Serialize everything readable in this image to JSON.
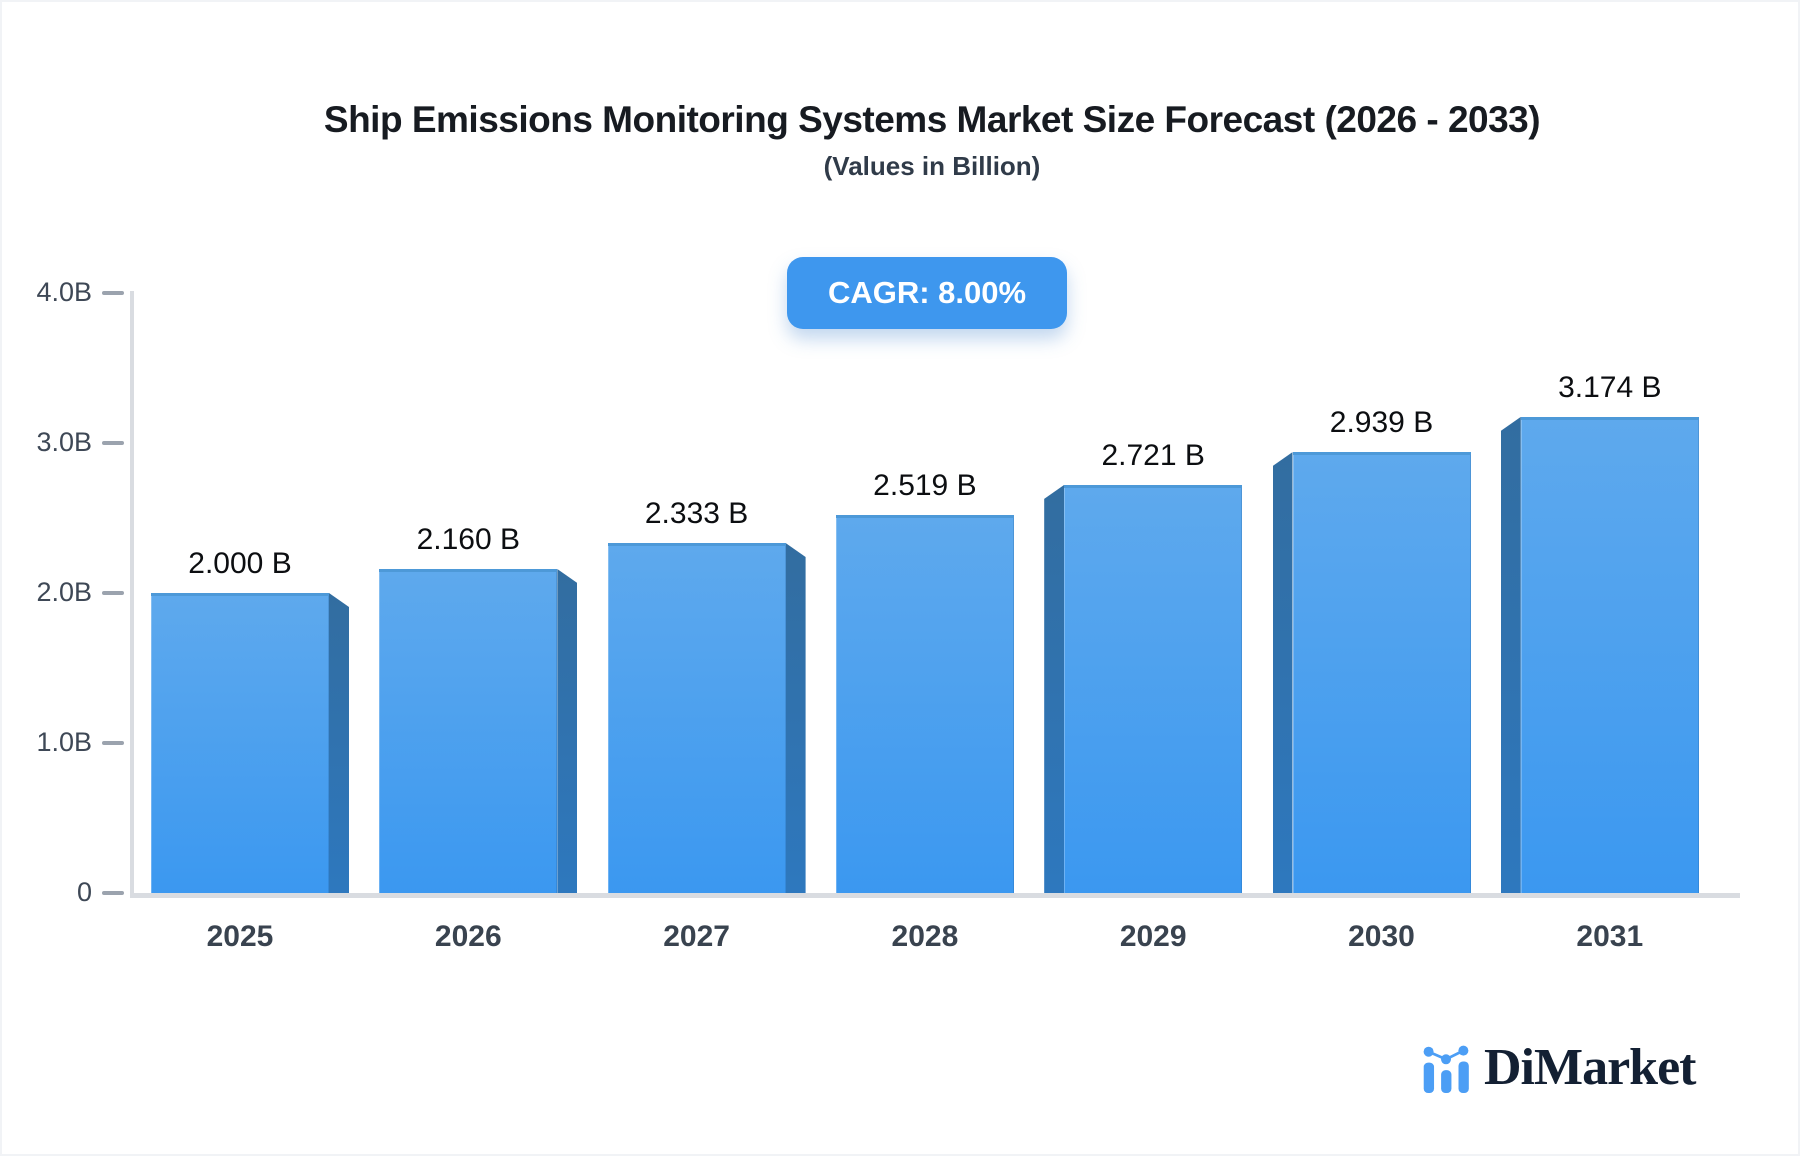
{
  "title": "Ship Emissions Monitoring Systems Market Size Forecast (2026 - 2033)",
  "subtitle": "(Values in Billion)",
  "badge": {
    "label": "CAGR: 8.00%"
  },
  "chart_data": {
    "type": "bar",
    "title": "Ship Emissions Monitoring Systems Market Size Forecast (2026 - 2033)",
    "subtitle": "(Values in Billion)",
    "unit": "Billion",
    "categories": [
      "2025",
      "2026",
      "2027",
      "2028",
      "2029",
      "2030",
      "2031"
    ],
    "values": [
      2.0,
      2.16,
      2.333,
      2.519,
      2.721,
      2.939,
      3.174
    ],
    "value_labels": [
      "2.000 B",
      "2.160 B",
      "2.333 B",
      "2.519 B",
      "2.721 B",
      "2.939 B",
      "3.174 B"
    ],
    "y_ticks": [
      {
        "label": "4.0B",
        "value": 4.0
      },
      {
        "label": "3.0B",
        "value": 3.0
      },
      {
        "label": "2.0B",
        "value": 2.0
      },
      {
        "label": "1.0B",
        "value": 1.0
      },
      {
        "label": "0",
        "value": 0.0
      }
    ],
    "ylim": [
      0,
      4
    ],
    "grid": "off",
    "legend": "none",
    "bar_sides": [
      "right",
      "right",
      "right",
      "none",
      "left",
      "left",
      "left"
    ]
  },
  "brand": {
    "name": "DiMarket"
  },
  "colors": {
    "accent": "#3e97ee",
    "bar_face_top": "#5ea9ed",
    "bar_face_bottom": "#3b98f0",
    "bar_side": "#2e76b5",
    "axis": "#d9dce1",
    "tick": "#9ba3ae",
    "logo_blue": "#4c9ef5",
    "logo_text": "#132033"
  }
}
